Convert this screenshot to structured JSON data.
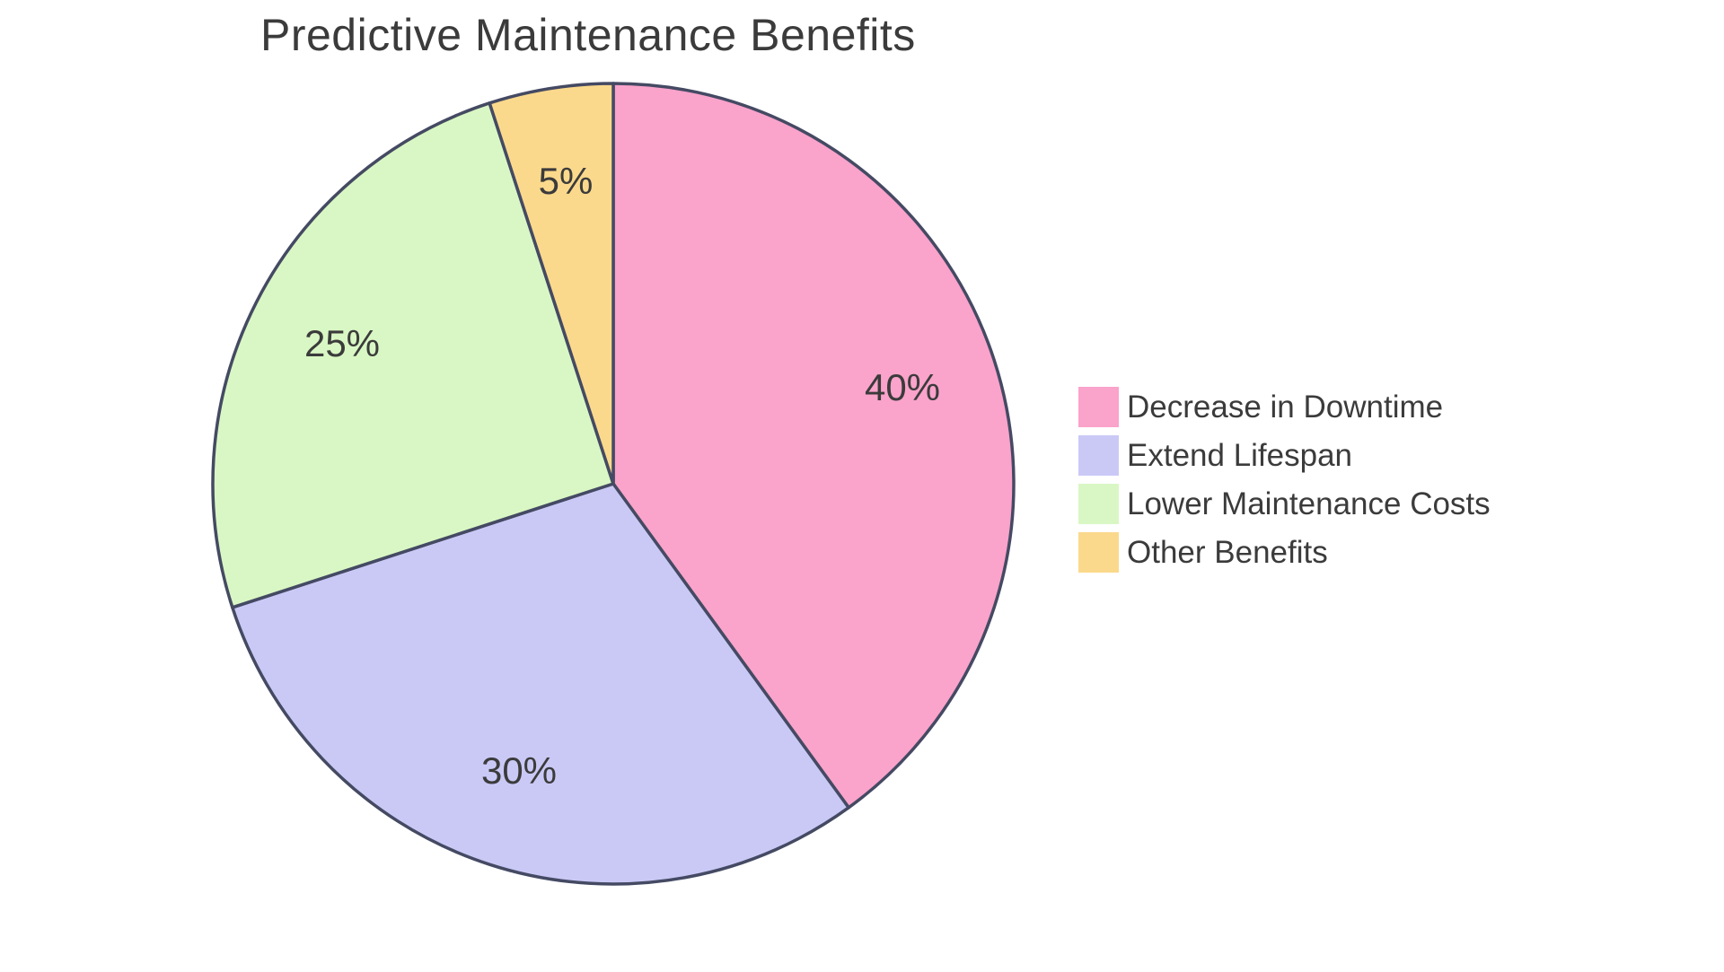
{
  "page": {
    "background": "#ffffff",
    "text_color": "#3b3b3b"
  },
  "chart_data": {
    "type": "pie",
    "title": "Predictive Maintenance Benefits",
    "categories": [
      "Decrease in Downtime",
      "Extend Lifespan",
      "Lower Maintenance Costs",
      "Other Benefits"
    ],
    "values": [
      40,
      30,
      25,
      5
    ],
    "slice_labels": [
      "40%",
      "30%",
      "25%",
      "5%"
    ],
    "slice_colors": [
      "#FAA3CB",
      "#CAC9F6",
      "#D9F7C4",
      "#FBD98C"
    ],
    "outline_color": "#454A63",
    "label_color": "#3b3b3b",
    "start_angle_deg": 0,
    "direction": "clockwise",
    "legend_position": "right",
    "grid": "off"
  }
}
